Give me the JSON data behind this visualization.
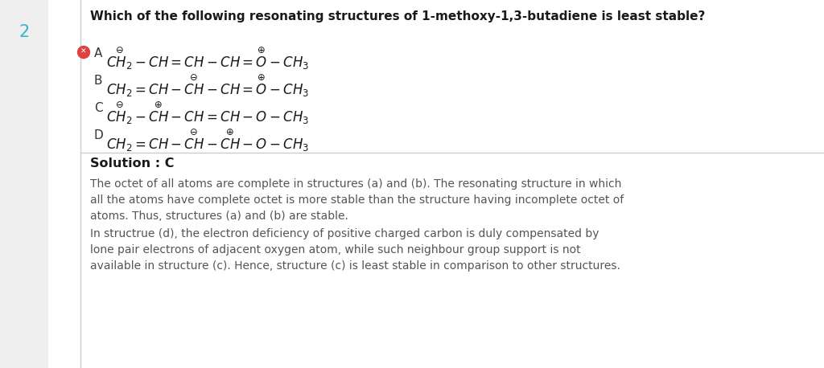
{
  "question_number": "2",
  "question_text": "Which of the following resonating structures of 1-methoxy-1,3-butadiene is least stable?",
  "background_color": "#ffffff",
  "left_panel_color": "#efefef",
  "divider_color": "#cccccc",
  "question_number_color": "#3ab5c5",
  "question_text_color": "#1a1a1a",
  "solution_color": "#1a1a1a",
  "body_text_color": "#555555",
  "selected_icon_color": "#e04040",
  "option_label_color": "#333333",
  "formula_color": "#1a1a1a",
  "solution_label": "Solution : C",
  "option_A_formula": "$\\overset{\\ominus}{CH_2}-CH=CH-CH=\\overset{\\oplus}{O}-CH_3$",
  "option_B_formula": "$CH_2=CH-\\overset{\\ominus}{CH}-CH=\\overset{\\oplus}{O}-CH_3$",
  "option_C_formula": "$\\overset{\\ominus}{CH_2}-\\overset{\\oplus}{CH}-CH=CH-O-CH_3$",
  "option_D_formula": "$CH_2=CH-\\overset{\\ominus}{CH}-\\overset{\\oplus}{CH}-O-CH_3$",
  "body_lines": [
    "The octet of all atoms are complete in structures (a) and (b). The resonating structure in which",
    "all the atoms have complete octet is more stable than the structure having incomplete octet of",
    "atoms. Thus, structures (a) and (b) are stable.",
    "In structrue (d), the electron deficiency of positive charged carbon is duly compensated by",
    "lone pair electrons of adjacent oxygen atom, while such neighbour group support is not",
    "available in structure (c). Hence, structure (c) is least stable in comparison to other structures."
  ],
  "fig_width": 10.24,
  "fig_height": 4.58,
  "dpi": 100
}
